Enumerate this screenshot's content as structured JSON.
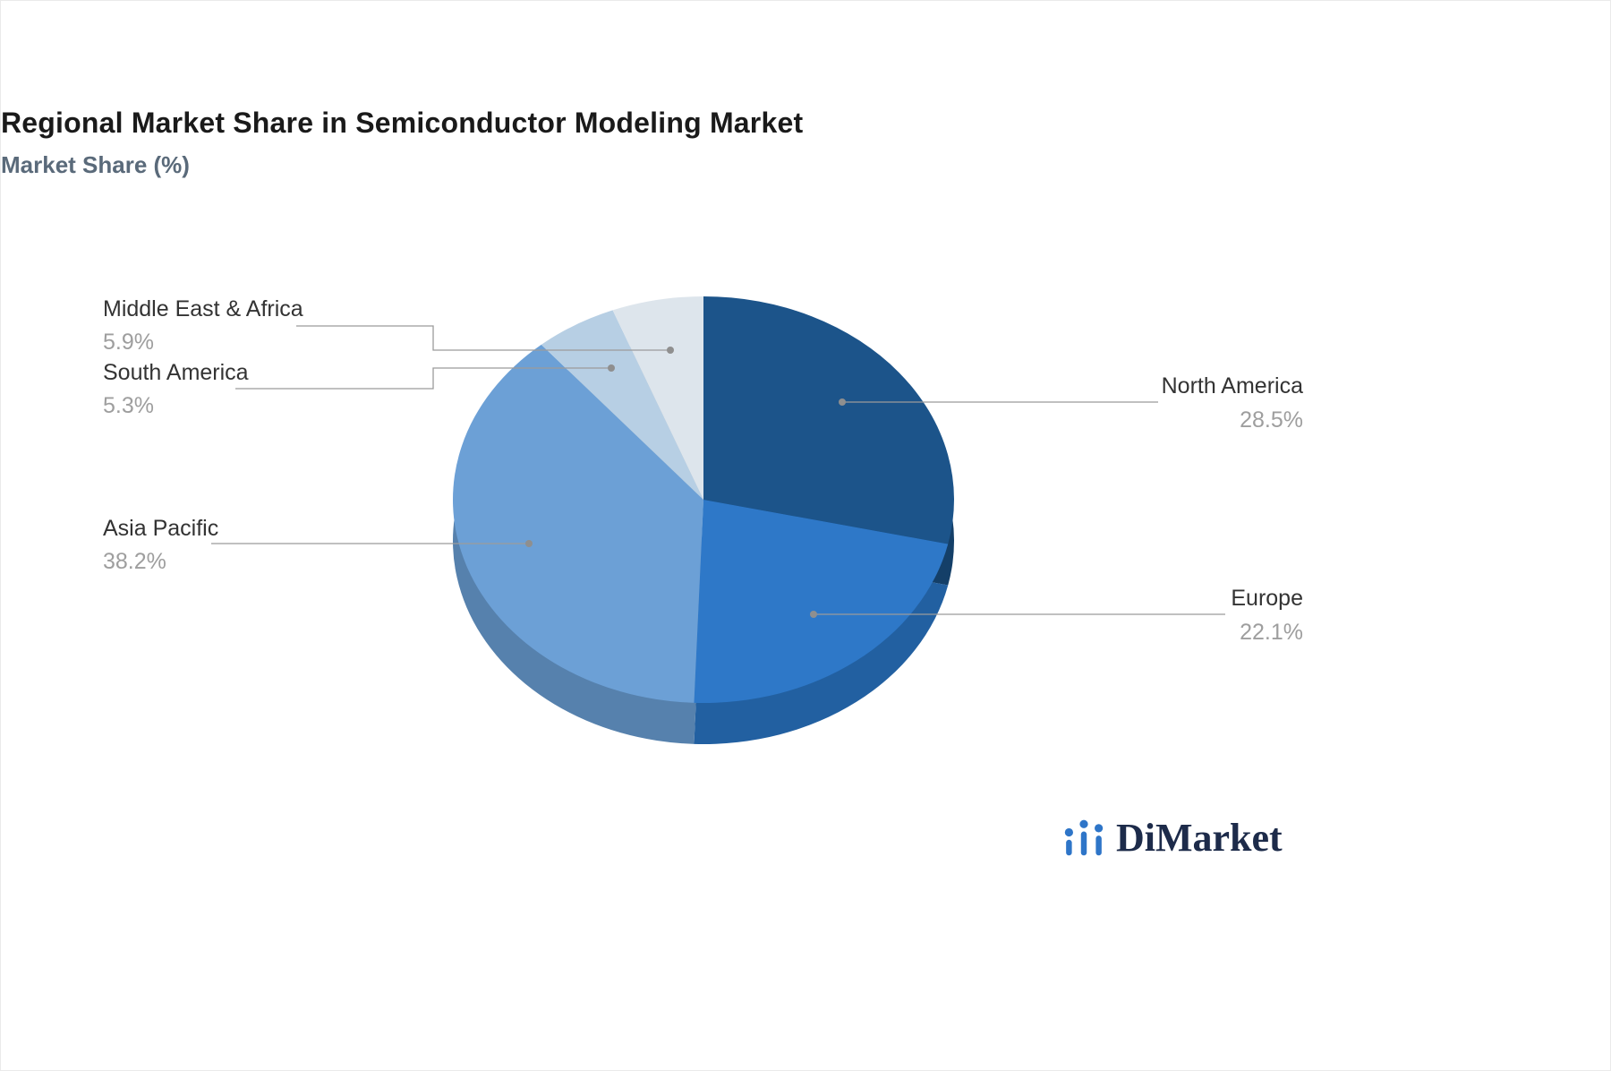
{
  "header": {
    "title": "Regional Market Share in Semiconductor Modeling Market",
    "subtitle": "Market Share (%)"
  },
  "logo": {
    "text": "DiMarket",
    "text_color": "#1d2b4a",
    "icon": "bar-chart-dots-icon",
    "icon_color": "#2e75c8"
  },
  "chart_data": {
    "type": "pie",
    "effect": "3d",
    "title": "Regional Market Share in Semiconductor Modeling Market",
    "subtitle": "Market Share (%)",
    "unit": "%",
    "start_angle_deg": -90,
    "direction": "clockwise",
    "legend": "none",
    "labels": [
      "North America",
      "Europe",
      "Asia Pacific",
      "South America",
      "Middle East & Africa"
    ],
    "values": [
      28.5,
      22.1,
      38.2,
      5.3,
      5.9
    ],
    "value_labels": [
      "28.5%",
      "22.1%",
      "38.2%",
      "5.3%",
      "5.9%"
    ],
    "colors": [
      "#1c548a",
      "#2e78c8",
      "#6ca0d6",
      "#b7cfe4",
      "#dde5ec"
    ],
    "depth_colors": [
      "#143f68",
      "#2260a1",
      "#5681ad",
      "#93a9c0",
      "#b4c0cb"
    ],
    "label_line_color": "#9b9b9b",
    "label_dot_color": "#8f8f8f",
    "label_name_color": "#333333",
    "label_value_color": "#9e9e9e"
  }
}
